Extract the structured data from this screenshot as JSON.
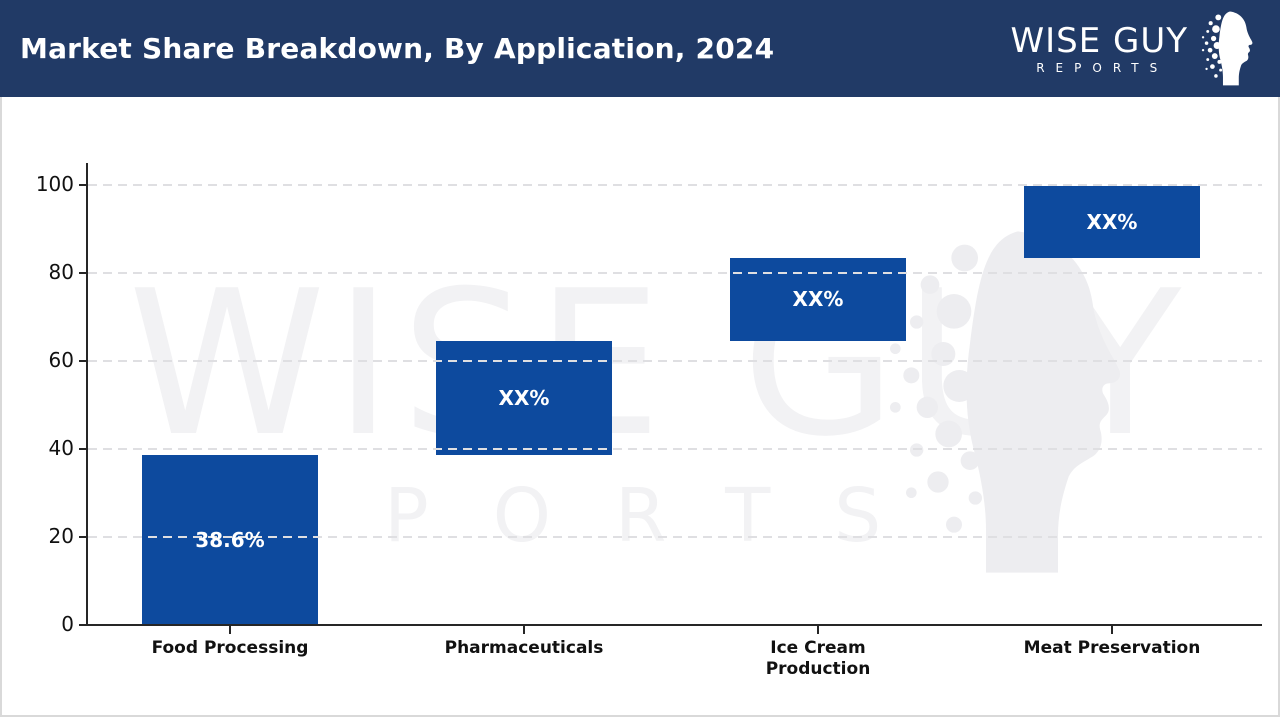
{
  "header": {
    "title": "Market Share Breakdown, By Application, 2024",
    "logo": {
      "line1": "WISE GUY",
      "line2": "REPORTS"
    }
  },
  "watermark": {
    "line1": "WISE GUY",
    "line2": "REPORTS"
  },
  "colors": {
    "header_bg": "#213a66",
    "bar_blue": "#0d4a9e",
    "gridline": "#dfdfe2",
    "axis": "#262626",
    "watermark": "#f2f2f4"
  },
  "chart_data": {
    "type": "bar",
    "subtype": "waterfall-segments",
    "title": "Market Share Breakdown, By Application, 2024",
    "categories": [
      "Food Processing",
      "Pharmaceuticals",
      "Ice Cream Production",
      "Meat Preservation"
    ],
    "x_tick_labels": [
      "Food Processing",
      "Pharmaceuticals",
      "Ice Cream\nProduction",
      "Meat Preservation"
    ],
    "segments": [
      {
        "category": "Food Processing",
        "start": 0,
        "end": 38.6,
        "label": "38.6%"
      },
      {
        "category": "Pharmaceuticals",
        "start": 38.6,
        "end": 64.5,
        "label": "XX%"
      },
      {
        "category": "Ice Cream Production",
        "start": 64.5,
        "end": 83.5,
        "label": "XX%"
      },
      {
        "category": "Meat Preservation",
        "start": 83.5,
        "end": 99.7,
        "label": "XX%"
      }
    ],
    "y_ticks": [
      0,
      20,
      40,
      60,
      80,
      100
    ],
    "ylim": [
      0,
      105
    ],
    "xlabel": "",
    "ylabel": "",
    "grid": "horizontal-dashed-over-bars",
    "legend": "none",
    "bar_color": "#0d4a9e",
    "bar_label_color": "#ffffff"
  }
}
